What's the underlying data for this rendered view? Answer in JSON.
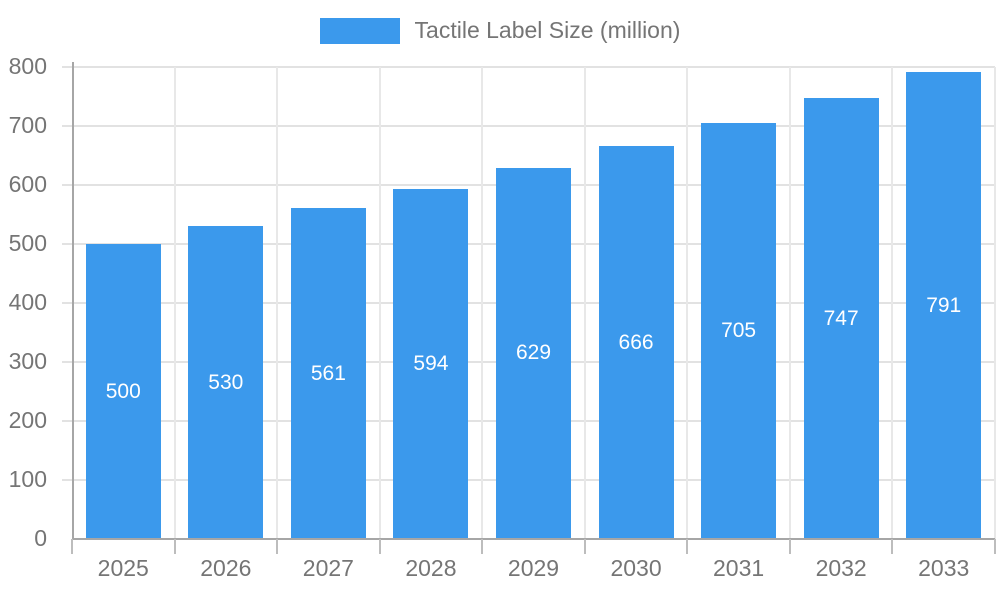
{
  "legend": {
    "label": "Tactile Label Size (million)",
    "swatch_color": "#3b99ec"
  },
  "chart_data": {
    "type": "bar",
    "title": "Tactile Label Size (million)",
    "categories": [
      "2025",
      "2026",
      "2027",
      "2028",
      "2029",
      "2030",
      "2031",
      "2032",
      "2033"
    ],
    "values": [
      500,
      530,
      561,
      594,
      629,
      666,
      705,
      747,
      791
    ],
    "xlabel": "",
    "ylabel": "",
    "ylim": [
      0,
      800
    ],
    "ytick_interval": 100,
    "ytick_labels": [
      "0",
      "100",
      "200",
      "300",
      "400",
      "500",
      "600",
      "700",
      "800"
    ],
    "grid": true,
    "legend_position": "top",
    "bar_color": "#3b99ec",
    "value_label_color": "#ffffff",
    "value_labels_inside": true
  },
  "colors": {
    "background": "#ffffff",
    "axis_line": "#a6a6a6",
    "gridline": "#e2e2e2",
    "tick": "#bdbdbd",
    "axis_text": "#757575",
    "bar": "#3b99ec",
    "bar_label_text": "#ffffff"
  }
}
